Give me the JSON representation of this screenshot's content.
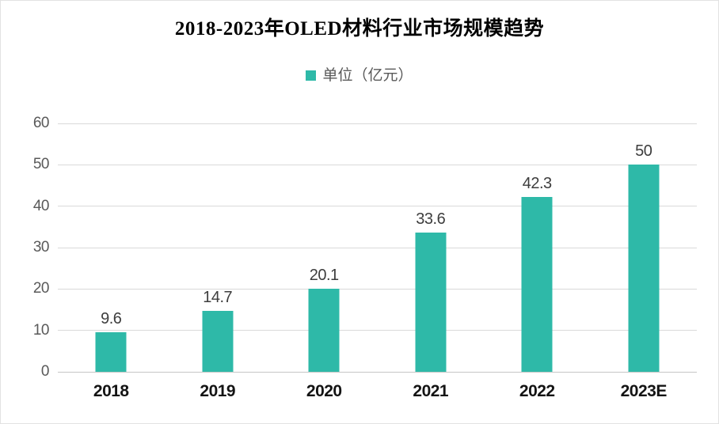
{
  "chart": {
    "title": "2018-2023年OLED材料行业市场规模趋势",
    "legend_label": "单位（亿元）"
  },
  "chart_data": {
    "type": "bar",
    "title": "2018-2023年OLED材料行业市场规模趋势",
    "categories": [
      "2018",
      "2019",
      "2020",
      "2021",
      "2022",
      "2023E"
    ],
    "series": [
      {
        "name": "单位（亿元）",
        "values": [
          9.6,
          14.7,
          20.1,
          33.6,
          42.3,
          50
        ]
      }
    ],
    "values": [
      9.6,
      14.7,
      20.1,
      33.6,
      42.3,
      50
    ],
    "value_labels": [
      "9.6",
      "14.7",
      "20.1",
      "33.6",
      "42.3",
      "50"
    ],
    "xlabel": "",
    "ylabel": "",
    "ylim": [
      0,
      60
    ],
    "yticks": [
      0,
      10,
      20,
      30,
      40,
      50,
      60
    ],
    "grid": true,
    "legend_position": "top-center",
    "colors": {
      "bar": "#2eb9a8",
      "gridline": "#d9d9d9",
      "axis_line": "#c6c6c6",
      "tick_text": "#595959",
      "value_text": "#3d3d3d",
      "category_text": "#141414",
      "title_text": "#000000",
      "background": "#ffffff"
    }
  }
}
